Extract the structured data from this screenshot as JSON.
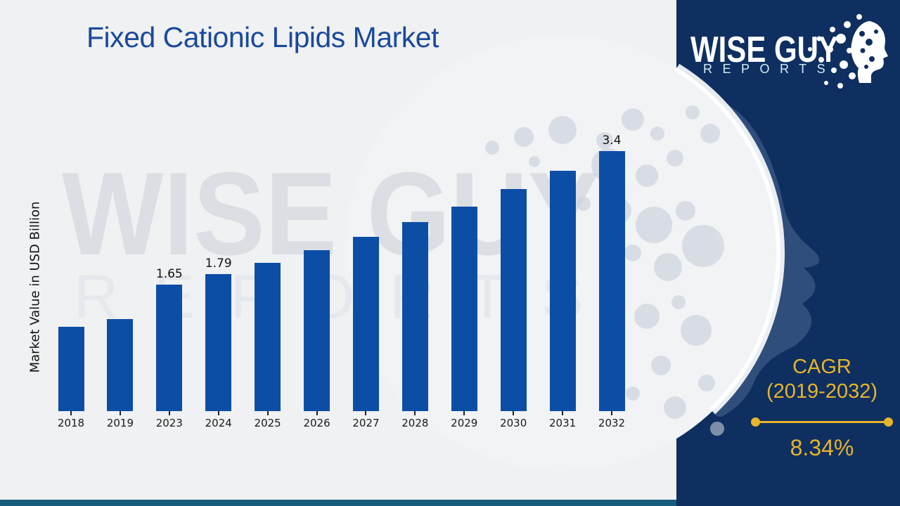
{
  "header": {
    "title": "Fixed Cationic Lipids Market"
  },
  "chart_data": {
    "type": "bar",
    "title": "Fixed Cationic Lipids Market",
    "categories": [
      "2018",
      "2019",
      "2023",
      "2024",
      "2025",
      "2026",
      "2027",
      "2028",
      "2029",
      "2030",
      "2031",
      "2032"
    ],
    "values": [
      1.1,
      1.2,
      1.65,
      1.79,
      1.94,
      2.1,
      2.28,
      2.47,
      2.67,
      2.9,
      3.14,
      3.4
    ],
    "bar_labels": [
      "",
      "",
      "1.65",
      "1.79",
      "",
      "",
      "",
      "",
      "",
      "",
      "",
      "3.4"
    ],
    "xlabel": "",
    "ylabel": "Market Value in USD Billion",
    "ylim": [
      0,
      3.6
    ],
    "grid": false,
    "legend": null,
    "bar_color": "#0c4ea6"
  },
  "watermark": {
    "line1": "WISE GUY",
    "line2": "REPORTS"
  },
  "logo": {
    "line1": "WISE GUY",
    "line2": "REPORTS"
  },
  "cagr": {
    "label": "CAGR",
    "range": "(2019-2032)",
    "value": "8.34%"
  },
  "colors": {
    "background": "#f0f1f2",
    "title_blue": "#1a4a9c",
    "bar_blue": "#0c4ea6",
    "panel_navy": "#0e2f60",
    "face_navy": "#2f4e7b",
    "accent_gold": "#e6b42a",
    "footer_teal": "#185d7d"
  }
}
